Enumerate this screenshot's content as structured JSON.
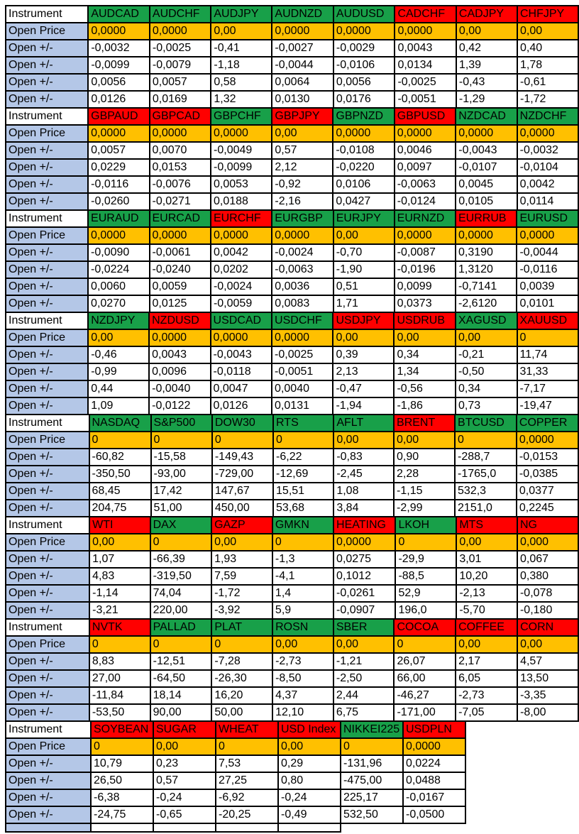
{
  "colors": {
    "green": "#18A049",
    "red": "#FF0000",
    "orange": "#FFC000",
    "label_blue": "#B4C7E7",
    "white": "#FFFFFF",
    "grid": "#000000",
    "text": "#000000"
  },
  "labels": {
    "instrument": "Instrument",
    "open_price": "Open Price",
    "open_change": "Open +/-"
  },
  "blocks": [
    {
      "instruments": [
        {
          "name": "AUDCAD",
          "color": "green"
        },
        {
          "name": "AUDCHF",
          "color": "green"
        },
        {
          "name": "AUDJPY",
          "color": "green"
        },
        {
          "name": "AUDNZD",
          "color": "green"
        },
        {
          "name": "AUDUSD",
          "color": "green"
        },
        {
          "name": "CADCHF",
          "color": "red"
        },
        {
          "name": "CADJPY",
          "color": "red"
        },
        {
          "name": "CHFJPY",
          "color": "red"
        }
      ],
      "open_prices": [
        "0,0000",
        "0,0000",
        "0,00",
        "0,0000",
        "0,0000",
        "0,0000",
        "0,00",
        "0,00"
      ],
      "changes": [
        [
          "-0,0032",
          "-0,0025",
          "-0,41",
          "-0,0027",
          "-0,0029",
          "0,0043",
          "0,42",
          "0,40"
        ],
        [
          "-0,0099",
          "-0,0079",
          "-1,18",
          "-0,0044",
          "-0,0106",
          "0,0134",
          "1,39",
          "1,78"
        ],
        [
          "0,0056",
          "0,0057",
          "0,58",
          "0,0064",
          "0,0056",
          "-0,0025",
          "-0,43",
          "-0,61"
        ],
        [
          "0,0126",
          "0,0169",
          "1,32",
          "0,0130",
          "0,0176",
          "-0,0051",
          "-1,29",
          "-1,72"
        ]
      ]
    },
    {
      "instruments": [
        {
          "name": "GBPAUD",
          "color": "red"
        },
        {
          "name": "GBPCAD",
          "color": "red"
        },
        {
          "name": "GBPCHF",
          "color": "green"
        },
        {
          "name": "GBPJPY",
          "color": "red"
        },
        {
          "name": "GBPNZD",
          "color": "green"
        },
        {
          "name": "GBPUSD",
          "color": "red"
        },
        {
          "name": "NZDCAD",
          "color": "green"
        },
        {
          "name": "NZDCHF",
          "color": "green"
        }
      ],
      "open_prices": [
        "0,0000",
        "0,0000",
        "0,0000",
        "0,00",
        "0,0000",
        "0,0000",
        "0,0000",
        "0,0000"
      ],
      "changes": [
        [
          "0,0057",
          "0,0070",
          "-0,0049",
          "0,57",
          "-0,0108",
          "0,0046",
          "-0,0043",
          "-0,0032"
        ],
        [
          "0,0229",
          "0,0153",
          "-0,0099",
          "2,12",
          "-0,0220",
          "0,0097",
          "-0,0107",
          "-0,0104"
        ],
        [
          "-0,0116",
          "-0,0076",
          "0,0053",
          "-0,92",
          "0,0106",
          "-0,0063",
          "0,0045",
          "0,0042"
        ],
        [
          "-0,0260",
          "-0,0271",
          "0,0188",
          "-2,16",
          "0,0427",
          "-0,0124",
          "0,0105",
          "0,0114"
        ]
      ]
    },
    {
      "instruments": [
        {
          "name": "EURAUD",
          "color": "green"
        },
        {
          "name": "EURCAD",
          "color": "green"
        },
        {
          "name": "EURCHF",
          "color": "red"
        },
        {
          "name": "EURGBP",
          "color": "green"
        },
        {
          "name": "EURJPY",
          "color": "green"
        },
        {
          "name": "EURNZD",
          "color": "green"
        },
        {
          "name": "EURRUB",
          "color": "red"
        },
        {
          "name": "EURUSD",
          "color": "green"
        }
      ],
      "open_prices": [
        "0,0000",
        "0,0000",
        "0,0000",
        "0,0000",
        "0,00",
        "0,0000",
        "0,0000",
        "0,0000"
      ],
      "changes": [
        [
          "-0,0090",
          "-0,0061",
          "0,0042",
          "-0,0024",
          "-0,70",
          "-0,0087",
          "0,3190",
          "-0,0044"
        ],
        [
          "-0,0224",
          "-0,0240",
          "0,0202",
          "-0,0063",
          "-1,90",
          "-0,0196",
          "1,3120",
          "-0,0116"
        ],
        [
          "0,0060",
          "0,0059",
          "-0,0024",
          "0,0036",
          "0,51",
          "0,0099",
          "-0,7141",
          "0,0039"
        ],
        [
          "0,0270",
          "0,0125",
          "-0,0059",
          "0,0083",
          "1,71",
          "0,0373",
          "-2,6120",
          "0,0101"
        ]
      ]
    },
    {
      "instruments": [
        {
          "name": "NZDJPY",
          "color": "green"
        },
        {
          "name": "NZDUSD",
          "color": "red"
        },
        {
          "name": "USDCAD",
          "color": "green"
        },
        {
          "name": "USDCHF",
          "color": "green"
        },
        {
          "name": "USDJPY",
          "color": "red"
        },
        {
          "name": "USDRUB",
          "color": "red"
        },
        {
          "name": "XAGUSD",
          "color": "green"
        },
        {
          "name": "XAUUSD",
          "color": "red"
        }
      ],
      "open_prices": [
        "0,00",
        "0,0000",
        "0,0000",
        "0,0000",
        "0,00",
        "0,00",
        "0,00",
        "0"
      ],
      "changes": [
        [
          "-0,46",
          "0,0043",
          "-0,0043",
          "-0,0025",
          "0,39",
          "0,34",
          "-0,21",
          "11,74"
        ],
        [
          "-0,99",
          "0,0096",
          "-0,0118",
          "-0,0051",
          "2,13",
          "1,34",
          "-0,50",
          "31,33"
        ],
        [
          "0,44",
          "-0,0040",
          "0,0047",
          "0,0040",
          "-0,47",
          "-0,56",
          "0,34",
          "-7,17"
        ],
        [
          "1,09",
          "-0,0122",
          "0,0126",
          "0,0131",
          "-1,94",
          "-1,86",
          "0,73",
          "-19,47"
        ]
      ]
    },
    {
      "instruments": [
        {
          "name": "NASDAQ",
          "color": "green"
        },
        {
          "name": "S&P500",
          "color": "green"
        },
        {
          "name": "DOW30",
          "color": "green"
        },
        {
          "name": "RTS",
          "color": "green"
        },
        {
          "name": "AFLT",
          "color": "green"
        },
        {
          "name": "BRENT",
          "color": "red"
        },
        {
          "name": "BTCUSD",
          "color": "green"
        },
        {
          "name": "COPPER",
          "color": "green"
        }
      ],
      "open_prices": [
        "0",
        "0",
        "0",
        "0",
        "0,00",
        "0,00",
        "0",
        "0,0000"
      ],
      "changes": [
        [
          "-60,82",
          "-15,58",
          "-149,43",
          "-6,22",
          "-0,83",
          "0,90",
          "-288,7",
          "-0,0153"
        ],
        [
          "-350,50",
          "-93,00",
          "-729,00",
          "-12,69",
          "-2,45",
          "2,28",
          "-1765,0",
          "-0,0385"
        ],
        [
          "68,45",
          "17,42",
          "147,67",
          "15,51",
          "1,08",
          "-1,15",
          "532,3",
          "0,0377"
        ],
        [
          "204,75",
          "51,00",
          "450,00",
          "53,68",
          "3,84",
          "-2,99",
          "2151,0",
          "0,2245"
        ]
      ]
    },
    {
      "instruments": [
        {
          "name": "WTI",
          "color": "red"
        },
        {
          "name": "DAX",
          "color": "green"
        },
        {
          "name": "GAZP",
          "color": "red"
        },
        {
          "name": "GMKN",
          "color": "green"
        },
        {
          "name": "HEATING",
          "color": "red"
        },
        {
          "name": "LKOH",
          "color": "green"
        },
        {
          "name": "MTS",
          "color": "red"
        },
        {
          "name": "NG",
          "color": "red"
        }
      ],
      "open_prices": [
        "0,00",
        "0",
        "0,00",
        "0",
        "0,0000",
        "0",
        "0,00",
        "0,000"
      ],
      "changes": [
        [
          "1,07",
          "-66,39",
          "1,93",
          "-1,3",
          "0,0275",
          "-29,9",
          "3,01",
          "0,067"
        ],
        [
          "4,83",
          "-319,50",
          "7,59",
          "-4,1",
          "0,1012",
          "-88,5",
          "10,20",
          "0,380"
        ],
        [
          "-1,14",
          "74,04",
          "-1,72",
          "1,4",
          "-0,0261",
          "52,9",
          "-2,13",
          "-0,078"
        ],
        [
          "-3,21",
          "220,00",
          "-3,92",
          "5,9",
          "-0,0907",
          "196,0",
          "-5,70",
          "-0,180"
        ]
      ]
    },
    {
      "instruments": [
        {
          "name": "NVTK",
          "color": "red"
        },
        {
          "name": "PALLAD",
          "color": "green"
        },
        {
          "name": "PLAT",
          "color": "green"
        },
        {
          "name": "ROSN",
          "color": "green"
        },
        {
          "name": "SBER",
          "color": "green"
        },
        {
          "name": "COCOA",
          "color": "red"
        },
        {
          "name": "COFFEE",
          "color": "red"
        },
        {
          "name": "CORN",
          "color": "red"
        }
      ],
      "open_prices": [
        "0",
        "0",
        "0",
        "0,00",
        "0,00",
        "0",
        "0,00",
        "0,00"
      ],
      "changes": [
        [
          "8,83",
          "-12,51",
          "-7,28",
          "-2,73",
          "-1,21",
          "26,07",
          "2,17",
          "4,57"
        ],
        [
          "27,00",
          "-64,50",
          "-26,30",
          "-8,50",
          "-2,50",
          "66,00",
          "6,05",
          "13,50"
        ],
        [
          "-11,84",
          "18,14",
          "16,20",
          "4,37",
          "2,44",
          "-46,27",
          "-2,73",
          "-3,35"
        ],
        [
          "-53,50",
          "90,00",
          "50,00",
          "12,10",
          "6,75",
          "-171,00",
          "-7,05",
          "-8,00"
        ]
      ]
    },
    {
      "instruments": [
        {
          "name": "SOYBEAN",
          "color": "red"
        },
        {
          "name": "SUGAR",
          "color": "red"
        },
        {
          "name": "WHEAT",
          "color": "red"
        },
        {
          "name": "USD Index",
          "color": "red"
        },
        {
          "name": "NIKKEI225",
          "color": "green"
        },
        {
          "name": "USDPLN",
          "color": "red"
        }
      ],
      "open_prices": [
        "0",
        "0,00",
        "0",
        "0,00",
        "0",
        "0,0000"
      ],
      "changes": [
        [
          "10,79",
          "0,23",
          "7,53",
          "0,29",
          "-131,96",
          "0,0224"
        ],
        [
          "26,50",
          "0,57",
          "27,25",
          "0,80",
          "-475,00",
          "0,0488"
        ],
        [
          "-6,38",
          "-0,24",
          "-6,92",
          "-0,24",
          "225,17",
          "-0,0167"
        ],
        [
          "-24,75",
          "-0,65",
          "-20,25",
          "-0,49",
          "532,50",
          "-0,0500"
        ]
      ]
    }
  ],
  "partial_bottom_row": {
    "visible_cells": 4,
    "label_cell_color": "label_blue"
  }
}
